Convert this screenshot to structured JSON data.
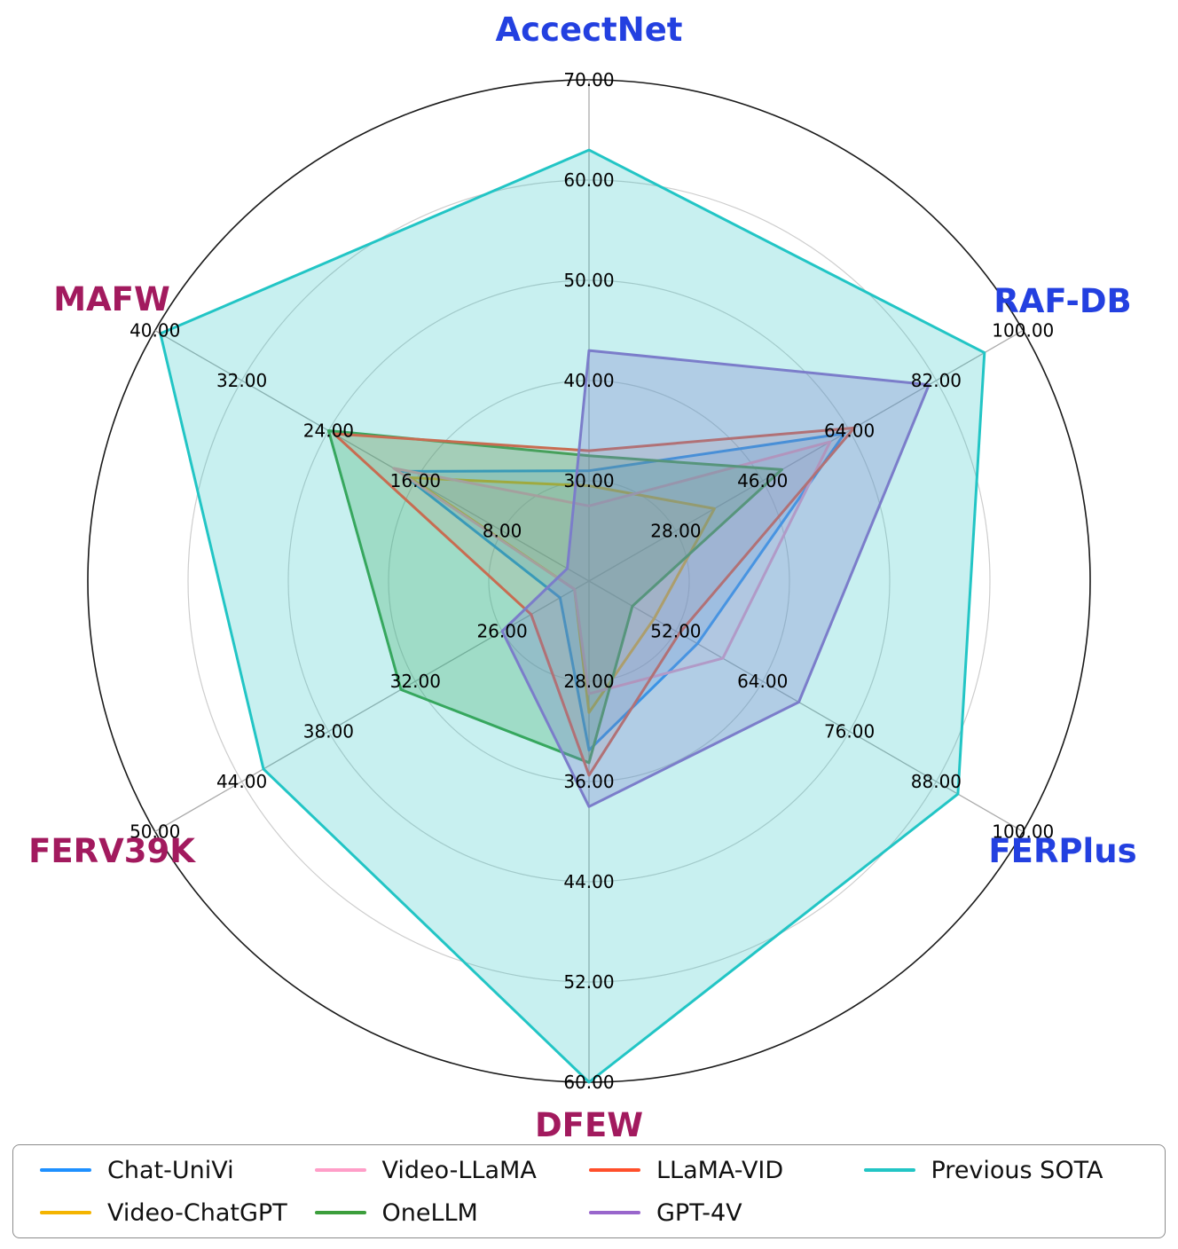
{
  "chart_data": {
    "type": "radar",
    "title": "",
    "grid": true,
    "legend_position": "bottom",
    "legend_columns": 4,
    "legend_fill_order": "column-major",
    "axis_title_colors": {
      "image_datasets": "#2340E0",
      "video_datasets": "#A21A5E"
    },
    "axes": [
      {
        "label": "AccectNet",
        "label_color": "#2340E0",
        "angle_deg": 90,
        "min": 20,
        "max": 70,
        "ticks": [
          30,
          40,
          50,
          60,
          70
        ]
      },
      {
        "label": "RAF-DB",
        "label_color": "#2340E0",
        "angle_deg": 30,
        "min": 10,
        "max": 100,
        "ticks": [
          28,
          46,
          64,
          82,
          100
        ]
      },
      {
        "label": "FERPlus",
        "label_color": "#2340E0",
        "angle_deg": -30,
        "min": 40,
        "max": 100,
        "ticks": [
          52,
          64,
          76,
          88,
          100
        ]
      },
      {
        "label": "DFEW",
        "label_color": "#A21A5E",
        "angle_deg": 270,
        "min": 20,
        "max": 60,
        "ticks": [
          28,
          36,
          44,
          52,
          60
        ]
      },
      {
        "label": "FERV39K",
        "label_color": "#A21A5E",
        "angle_deg": 210,
        "min": 20,
        "max": 50,
        "ticks": [
          26,
          32,
          38,
          44,
          50
        ]
      },
      {
        "label": "MAFW",
        "label_color": "#A21A5E",
        "angle_deg": 150,
        "min": 0,
        "max": 40,
        "ticks": [
          8,
          16,
          24,
          32,
          40
        ]
      }
    ],
    "tick_decimal_places": 2,
    "series": [
      {
        "name": "Chat-UniVi",
        "color": "#1E90FF",
        "fill_opacity": 0.18,
        "values": [
          31,
          63,
          55,
          33.5,
          22,
          17.5
        ]
      },
      {
        "name": "Video-ChatGPT",
        "color": "#F4B400",
        "fill_opacity": 0.12,
        "values": [
          29.5,
          36,
          49,
          30.5,
          21,
          16.5
        ]
      },
      {
        "name": "Video-LLaMA",
        "color": "#FF9EC8",
        "fill_opacity": 0.12,
        "values": [
          27.5,
          60,
          58.5,
          29,
          21,
          18
        ]
      },
      {
        "name": "OneLLM",
        "color": "#3C9E3C",
        "fill_opacity": 0.28,
        "values": [
          32.5,
          50,
          46,
          34.5,
          33,
          24
        ]
      },
      {
        "name": "LLaMA-VID",
        "color": "#FF4F2B",
        "fill_opacity": 0.12,
        "values": [
          33,
          65,
          52.5,
          35.5,
          24,
          23.5
        ]
      },
      {
        "name": "GPT-4V",
        "color": "#9966CC",
        "fill_opacity": 0.3,
        "values": [
          43,
          80.5,
          69,
          38,
          26,
          2
        ]
      },
      {
        "name": "Previous SOTA",
        "color": "#22C5C5",
        "fill_opacity": 0.25,
        "values": [
          63,
          92,
          91,
          60,
          42.5,
          39.5
        ]
      }
    ]
  }
}
